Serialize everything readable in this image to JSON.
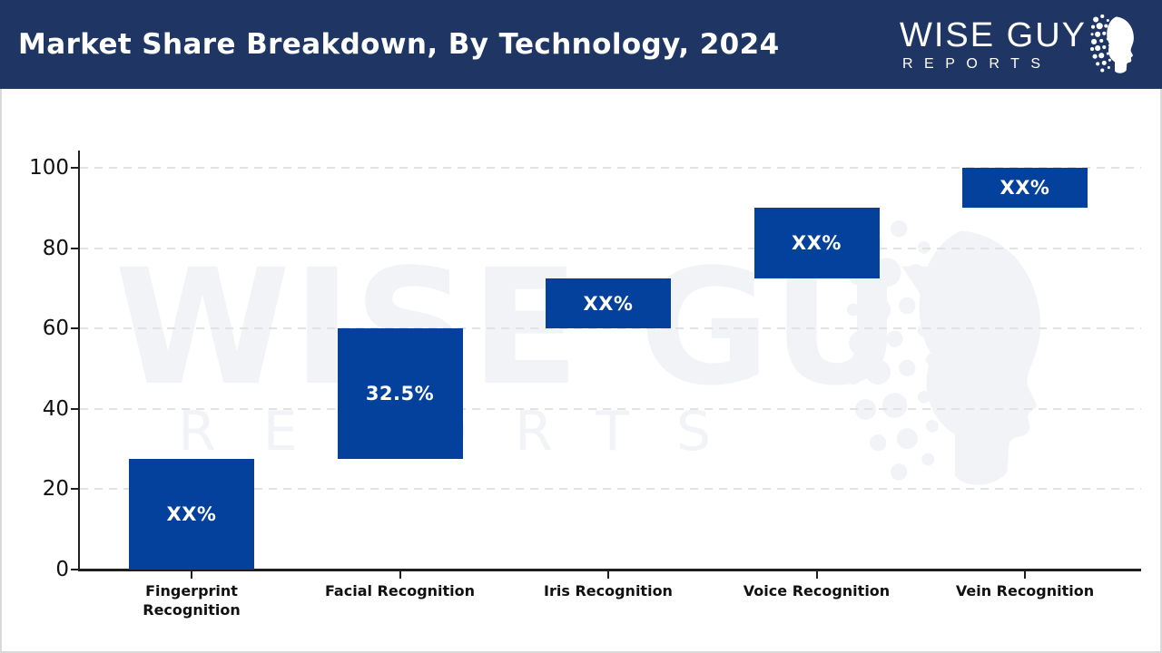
{
  "header": {
    "title": "Market Share Breakdown, By Technology, 2024",
    "logo": {
      "line1": "WISE GUY",
      "line2": "REPORTS"
    }
  },
  "watermark": {
    "line1": "WISE GUY",
    "line2": "REPORTS"
  },
  "colors": {
    "header_bg": "#1f3665",
    "bar": "#04419c",
    "bar_label_text": "#ffffff",
    "axis": "#1f1f1f",
    "grid": "#e2e2e2",
    "tick_text": "#111111",
    "watermark": "#f2f3f6",
    "frame_border": "#d9d9d9",
    "title_text": "#ffffff"
  },
  "chart_data": {
    "type": "bar",
    "subtype": "waterfall",
    "title": "Market Share Breakdown, By Technology, 2024",
    "categories": [
      "Fingerprint Recognition",
      "Facial Recognition",
      "Iris Recognition",
      "Voice Recognition",
      "Vein Recognition"
    ],
    "category_label_lines": [
      [
        "Fingerprint",
        "Recognition"
      ],
      [
        "Facial Recognition"
      ],
      [
        "Iris Recognition"
      ],
      [
        "Voice Recognition"
      ],
      [
        "Vein Recognition"
      ]
    ],
    "segments": [
      {
        "category": "Fingerprint Recognition",
        "start": 0,
        "end": 27.5,
        "value": 27.5,
        "label": "XX%"
      },
      {
        "category": "Facial Recognition",
        "start": 27.5,
        "end": 60,
        "value": 32.5,
        "label": "32.5%"
      },
      {
        "category": "Iris Recognition",
        "start": 60,
        "end": 72.5,
        "value": 12.5,
        "label": "XX%"
      },
      {
        "category": "Voice Recognition",
        "start": 72.5,
        "end": 90,
        "value": 17.5,
        "label": "XX%"
      },
      {
        "category": "Vein Recognition",
        "start": 90,
        "end": 100,
        "value": 10,
        "label": "XX%"
      }
    ],
    "y_ticks": [
      0,
      20,
      40,
      60,
      80,
      100
    ],
    "ylim": [
      0,
      100
    ],
    "xlabel": "",
    "ylabel": "",
    "legend": "none",
    "grid": "horizontal-dashed"
  }
}
